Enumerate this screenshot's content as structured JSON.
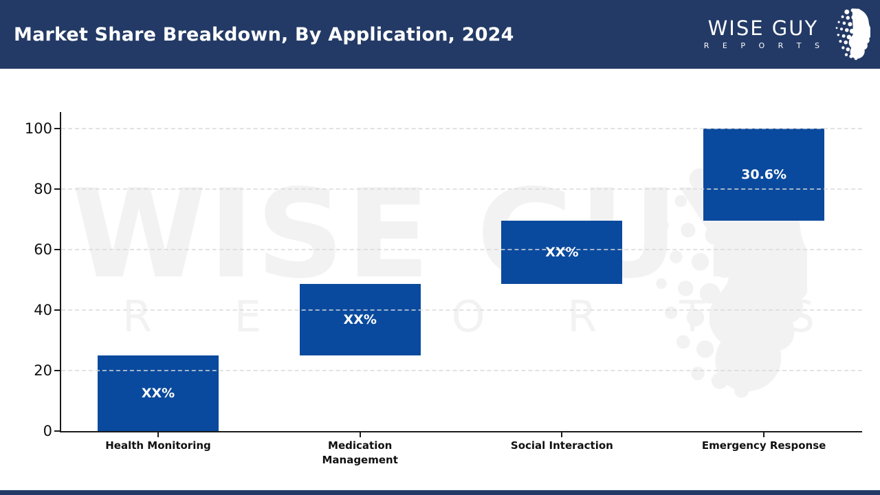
{
  "header": {
    "title": "Market Share Breakdown, By Application, 2024",
    "brand_line1": "WISE GUY",
    "brand_line2": "R E P O R T S"
  },
  "watermark": {
    "line1": "WISE GUY",
    "line2": "R E P O R T S"
  },
  "chart_data": {
    "type": "bar",
    "subtype": "floating-segment-waterfall",
    "title": "Market Share Breakdown, By Application, 2024",
    "categories": [
      "Health Monitoring",
      "Medication\nManagement",
      "Social Interaction",
      "Emergency Response"
    ],
    "series": [
      {
        "name": "Market Share (%)",
        "segments": [
          {
            "category": "Health Monitoring",
            "start": 0,
            "end": 25,
            "label": "XX%"
          },
          {
            "category": "Medication Management",
            "start": 25,
            "end": 48.5,
            "label": "XX%"
          },
          {
            "category": "Social Interaction",
            "start": 48.5,
            "end": 69.4,
            "label": "XX%"
          },
          {
            "category": "Emergency Response",
            "start": 69.4,
            "end": 100,
            "label": "30.6%"
          }
        ]
      }
    ],
    "xlabel": "",
    "ylabel": "",
    "yticks": [
      0,
      20,
      40,
      60,
      80,
      100
    ],
    "ylim": [
      0,
      105
    ],
    "grid": "horizontal-dashed-above-bars",
    "legend": "none",
    "colors": {
      "bar": "#0a4a9e",
      "bar_label": "#ffffff",
      "axis": "#1a1a1a",
      "gridline": "#d9d9d9",
      "header_bg": "#233a66",
      "watermark": "#f2f2f2"
    }
  }
}
